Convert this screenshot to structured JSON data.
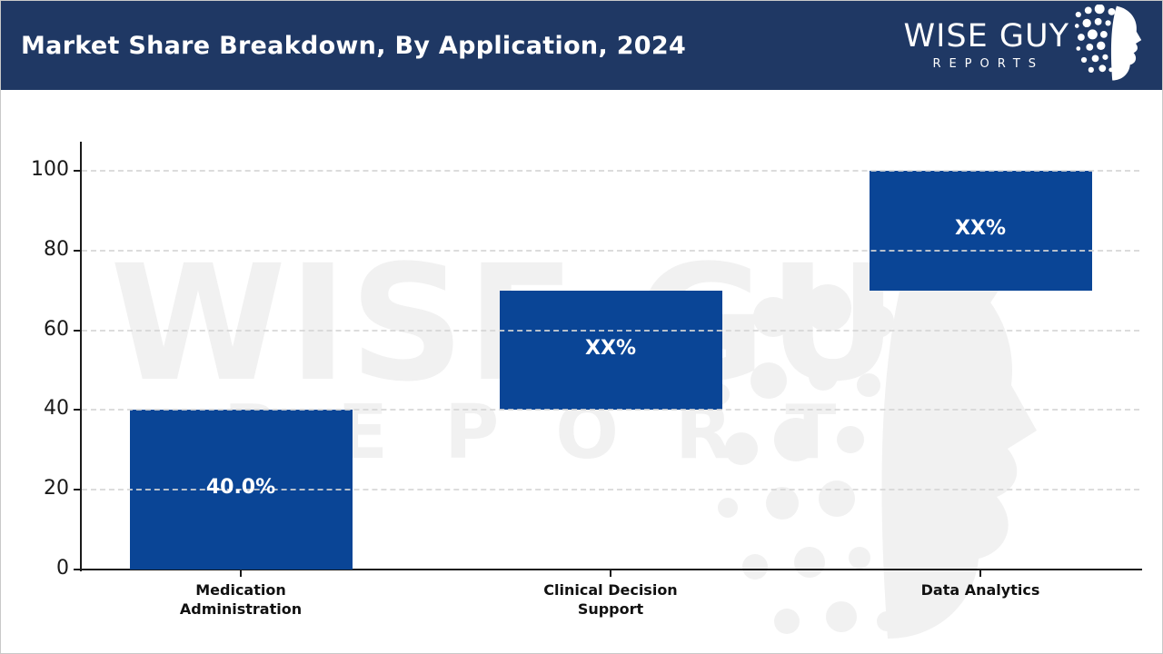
{
  "page": {
    "header": {
      "title": "Market Share Breakdown, By Application, 2024",
      "logo": {
        "name": "WISE GUY",
        "sub": "REPORTS"
      }
    },
    "watermark": {
      "line1": "WISE GUY",
      "line2": "REPORTS"
    }
  },
  "colors": {
    "header_bg": "#1f3864",
    "bar_fill": "#0a4596",
    "bar_label": "#ffffff",
    "axis_line": "#1a1a1a",
    "tick_label": "#1a1a1a",
    "watermark": "#f1f1f1"
  },
  "chart_data": {
    "type": "bar",
    "subtype": "floating-waterfall",
    "title": "Market Share Breakdown, By Application, 2024",
    "categories": [
      "Medication\nAdministration",
      "Clinical Decision\nSupport",
      "Data Analytics"
    ],
    "series": [
      {
        "name": "Market share",
        "ranges": [
          [
            0,
            40
          ],
          [
            40,
            70
          ],
          [
            70,
            100
          ]
        ],
        "labels": [
          "40.0%",
          "XX%",
          "XX%"
        ]
      }
    ],
    "xlabel": "",
    "ylabel": "",
    "yticks": [
      0,
      20,
      40,
      60,
      80,
      100
    ],
    "ylim": [
      0,
      100
    ],
    "grid": "horizontal-dashed",
    "legend": "none",
    "bar_color": "#0a4596"
  }
}
